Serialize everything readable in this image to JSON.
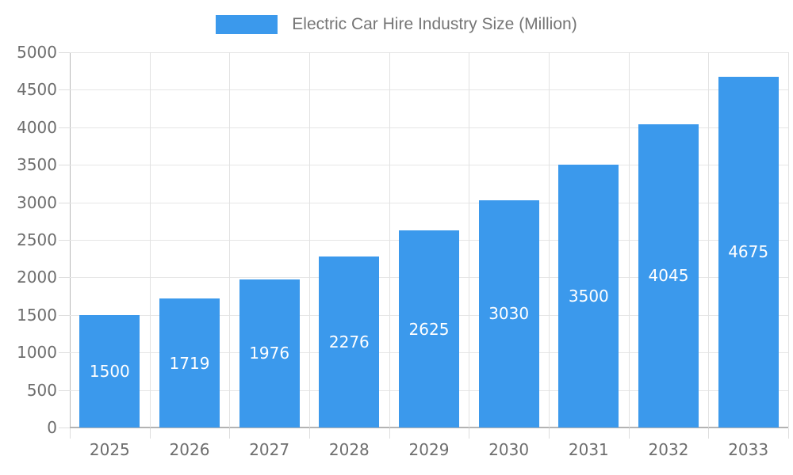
{
  "legend": {
    "label": "Electric Car Hire Industry Size (Million)",
    "position": "top"
  },
  "chart_data": {
    "type": "bar",
    "title": "Electric Car Hire Industry Size (Million)",
    "categories": [
      "2025",
      "2026",
      "2027",
      "2028",
      "2029",
      "2030",
      "2031",
      "2032",
      "2033"
    ],
    "values": [
      1500,
      1719,
      1976,
      2276,
      2625,
      3030,
      3500,
      4045,
      4675
    ],
    "xlabel": "",
    "ylabel": "",
    "ylim": [
      0,
      5000
    ],
    "ytick_step": 500,
    "grid": true,
    "legend_position": "top",
    "colors": {
      "bar": "#3b99ec",
      "value_label": "#ffffff",
      "axis_label": "#6e6e6e",
      "legend_text": "#757575",
      "gridline": "#e6e6e6",
      "axis_line": "#b8b8b8",
      "baseline": "#b3b3b3",
      "background": "#ffffff"
    }
  }
}
